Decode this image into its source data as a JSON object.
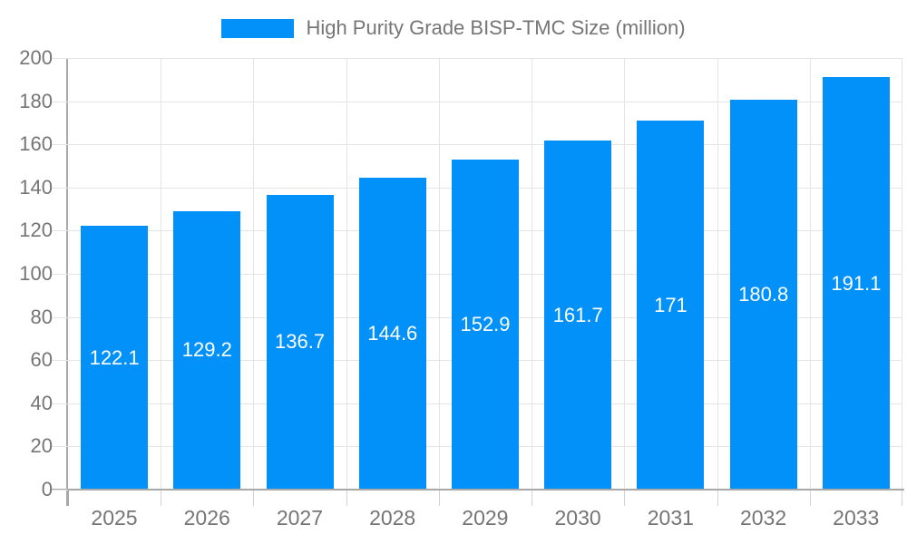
{
  "legend": {
    "label": "High Purity Grade BISP-TMC Size (million)"
  },
  "chart_data": {
    "type": "bar",
    "title": "High Purity Grade BISP-TMC Size (million)",
    "categories": [
      "2025",
      "2026",
      "2027",
      "2028",
      "2029",
      "2030",
      "2031",
      "2032",
      "2033"
    ],
    "values": [
      122.1,
      129.2,
      136.7,
      144.6,
      152.9,
      161.7,
      171,
      180.8,
      191.1
    ],
    "value_labels": [
      "122.1",
      "129.2",
      "136.7",
      "144.6",
      "152.9",
      "161.7",
      "171",
      "180.8",
      "191.1"
    ],
    "series_name": "High Purity Grade BISP-TMC Size (million)",
    "xlabel": "",
    "ylabel": "",
    "ylim": [
      0,
      200
    ],
    "yticks": [
      0,
      20,
      40,
      60,
      80,
      100,
      120,
      140,
      160,
      180,
      200
    ],
    "grid": true,
    "legend_position": "top-center",
    "value_label_position": "inside-center"
  },
  "colors": {
    "bar": "#0291f8",
    "grid_line": "#e4e4e4",
    "axis_line": "#a8a8a8",
    "x_tick_line": "#d2d2d2",
    "tick_text": "#757575",
    "value_label_text": "#ffffff",
    "background": "#ffffff"
  }
}
